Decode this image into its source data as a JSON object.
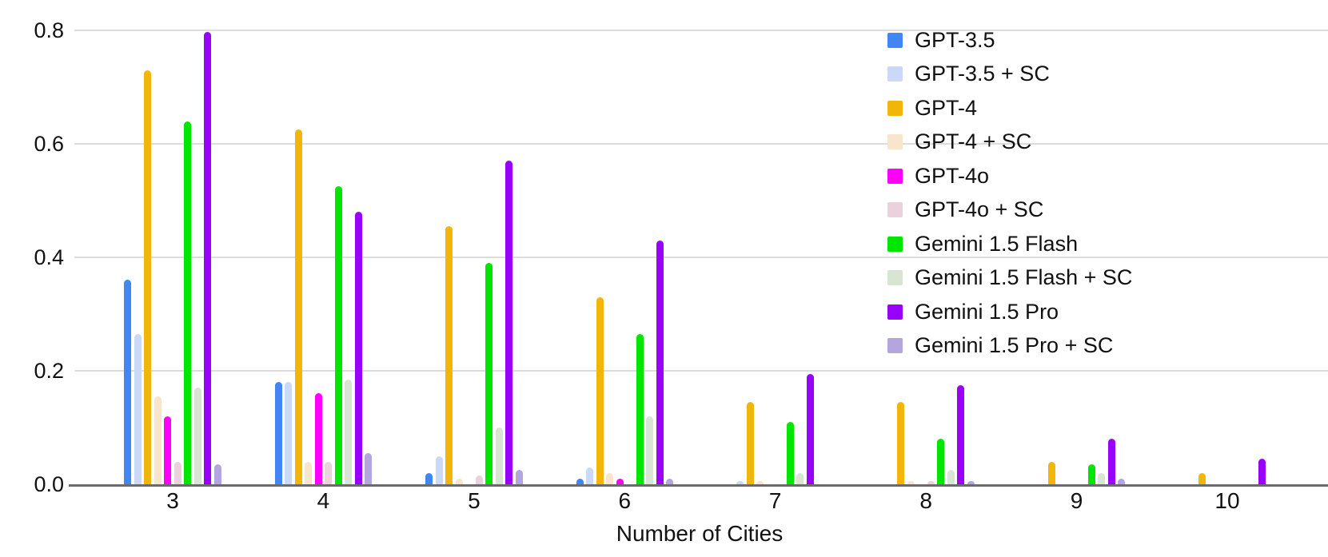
{
  "chart_data": {
    "type": "bar",
    "title": "",
    "xlabel": "Number of Cities",
    "ylabel": "",
    "categories": [
      "3",
      "4",
      "5",
      "6",
      "7",
      "8",
      "9",
      "10"
    ],
    "yticks": [
      {
        "label": "0.0",
        "value": 0.0
      },
      {
        "label": "0.2",
        "value": 0.2
      },
      {
        "label": "0.4",
        "value": 0.4
      },
      {
        "label": "0.6",
        "value": 0.6
      },
      {
        "label": "0.8",
        "value": 0.8
      }
    ],
    "ylim": [
      0,
      0.8
    ],
    "grid": true,
    "legend_position": "top-right",
    "axis_color": "#6a6a6a",
    "gridline_color": "#dcdcdc",
    "series": [
      {
        "name": "GPT-3.5",
        "color": "#4286F5",
        "values": [
          0.36,
          0.18,
          0.02,
          0.01,
          0,
          0,
          0,
          0
        ]
      },
      {
        "name": "GPT-3.5 + SC",
        "color": "#C9D9F7",
        "values": [
          0.265,
          0.18,
          0.05,
          0.03,
          0.005,
          0,
          0,
          0
        ]
      },
      {
        "name": "GPT-4",
        "color": "#F2B60B",
        "values": [
          0.73,
          0.625,
          0.455,
          0.33,
          0.145,
          0.145,
          0.04,
          0.02
        ]
      },
      {
        "name": "GPT-4 + SC",
        "color": "#F8E5CC",
        "values": [
          0.155,
          0.04,
          0.01,
          0.02,
          0.005,
          0.005,
          0,
          0
        ]
      },
      {
        "name": "GPT-4o",
        "color": "#FF00FF",
        "values": [
          0.12,
          0.16,
          0,
          0.01,
          0,
          0,
          0,
          0
        ]
      },
      {
        "name": "GPT-4o + SC",
        "color": "#EAD1DB",
        "values": [
          0.04,
          0.04,
          0.015,
          0,
          0,
          0.005,
          0,
          0
        ]
      },
      {
        "name": "Gemini 1.5 Flash",
        "color": "#00E600",
        "values": [
          0.64,
          0.525,
          0.39,
          0.265,
          0.11,
          0.08,
          0.035,
          0
        ]
      },
      {
        "name": "Gemini 1.5 Flash + SC",
        "color": "#D8E5D3",
        "values": [
          0.17,
          0.185,
          0.1,
          0.12,
          0.02,
          0.025,
          0.02,
          0
        ]
      },
      {
        "name": "Gemini 1.5 Pro",
        "color": "#9902F8",
        "values": [
          0.797,
          0.48,
          0.57,
          0.43,
          0.195,
          0.175,
          0.08,
          0.045
        ]
      },
      {
        "name": "Gemini 1.5 Pro + SC",
        "color": "#B3A6DE",
        "values": [
          0.035,
          0.055,
          0.025,
          0.01,
          0,
          0.005,
          0.01,
          0
        ]
      }
    ]
  }
}
